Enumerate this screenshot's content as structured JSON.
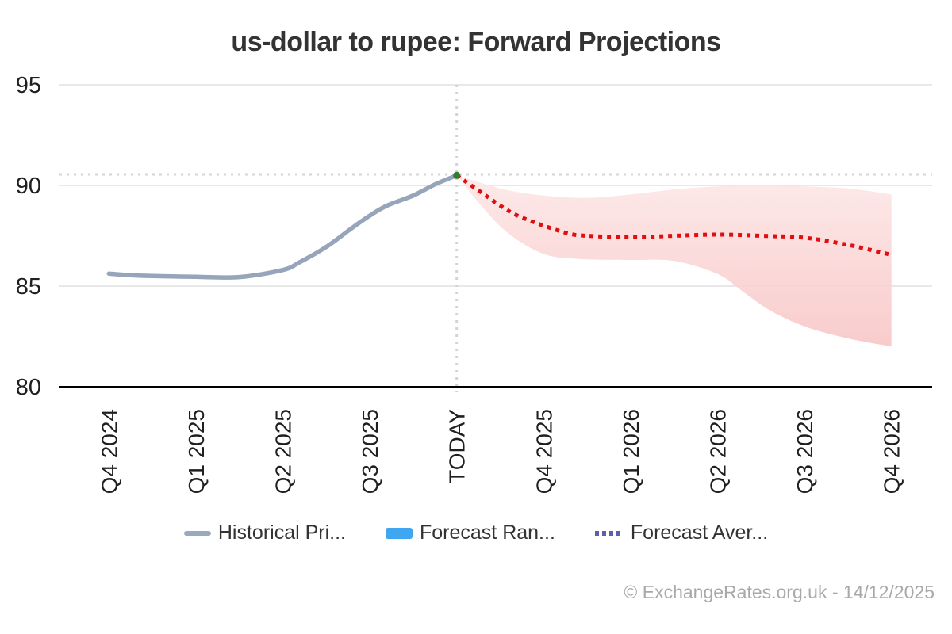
{
  "header": {
    "title_note": "title lives in chart_data.title"
  },
  "watermark": "© ExchangeRates.org.uk - 14/12/2025",
  "legend": [
    {
      "label": "Historical Pri...",
      "swatch": "line",
      "color": "#9aa9bd"
    },
    {
      "label": "Forecast Ran...",
      "swatch": "area",
      "color": "#41a6f1"
    },
    {
      "label": "Forecast Aver...",
      "swatch": "dotted",
      "color": "#5b5fae"
    }
  ],
  "chart_data": {
    "type": "line",
    "title": "us-dollar to rupee: Forward Projections",
    "categories": [
      "Q4 2024",
      "Q1 2025",
      "Q2 2025",
      "Q3 2025",
      "TODAY",
      "Q4 2025",
      "Q1 2026",
      "Q2 2026",
      "Q3 2026",
      "Q4 2026"
    ],
    "y_ticks": [
      80,
      85,
      90,
      95
    ],
    "ylim": [
      80,
      95
    ],
    "grid": true,
    "legend_position": "bottom",
    "today_index": 4,
    "current_rate": 90.55,
    "today_marker": {
      "index": 4,
      "value": 90.5,
      "color": "#2e7d32"
    },
    "colors": {
      "historical": "#96a5ba",
      "forecast_average": "#e00e0e",
      "band_top": "#fde7e7",
      "band_bottom": "#f8c6c6",
      "grid": "#e0e0e0",
      "axis": "#000000",
      "ref_dotted": "#d4d4d4",
      "tick_text": "#1f1f1f"
    },
    "series": [
      {
        "name": "Historical Price",
        "style": "solid",
        "color": "#96a5ba",
        "points": [
          [
            0,
            85.62
          ],
          [
            0.25,
            85.54
          ],
          [
            0.5,
            85.5
          ],
          [
            1,
            85.46
          ],
          [
            1.5,
            85.45
          ],
          [
            2,
            85.8
          ],
          [
            2.2,
            86.2
          ],
          [
            2.5,
            86.95
          ],
          [
            2.8,
            87.9
          ],
          [
            3,
            88.5
          ],
          [
            3.2,
            89.0
          ],
          [
            3.5,
            89.5
          ],
          [
            3.75,
            90.05
          ],
          [
            4,
            90.5
          ]
        ]
      },
      {
        "name": "Forecast Average",
        "style": "dotted",
        "color": "#e00e0e",
        "points": [
          [
            4,
            90.5
          ],
          [
            4.1,
            90.2
          ],
          [
            4.3,
            89.6
          ],
          [
            4.5,
            89.0
          ],
          [
            4.7,
            88.5
          ],
          [
            5,
            88.0
          ],
          [
            5.3,
            87.6
          ],
          [
            5.5,
            87.5
          ],
          [
            6,
            87.42
          ],
          [
            6.5,
            87.5
          ],
          [
            7,
            87.56
          ],
          [
            7.5,
            87.5
          ],
          [
            8,
            87.4
          ],
          [
            8.5,
            87.05
          ],
          [
            9,
            86.55
          ]
        ]
      }
    ],
    "band": {
      "name": "Forecast Range",
      "upper": [
        [
          4,
          90.5
        ],
        [
          4.3,
          90.1
        ],
        [
          4.6,
          89.75
        ],
        [
          5,
          89.5
        ],
        [
          5.5,
          89.38
        ],
        [
          6,
          89.55
        ],
        [
          6.5,
          89.8
        ],
        [
          7,
          89.95
        ],
        [
          7.5,
          90.0
        ],
        [
          8,
          89.95
        ],
        [
          8.5,
          89.85
        ],
        [
          9,
          89.55
        ]
      ],
      "lower": [
        [
          4,
          90.5
        ],
        [
          4.3,
          88.9
        ],
        [
          4.6,
          87.6
        ],
        [
          5,
          86.6
        ],
        [
          5.4,
          86.35
        ],
        [
          6,
          86.3
        ],
        [
          6.5,
          86.25
        ],
        [
          7,
          85.6
        ],
        [
          7.3,
          84.7
        ],
        [
          7.6,
          83.8
        ],
        [
          8,
          83.0
        ],
        [
          8.5,
          82.4
        ],
        [
          9,
          82.0
        ]
      ]
    }
  }
}
